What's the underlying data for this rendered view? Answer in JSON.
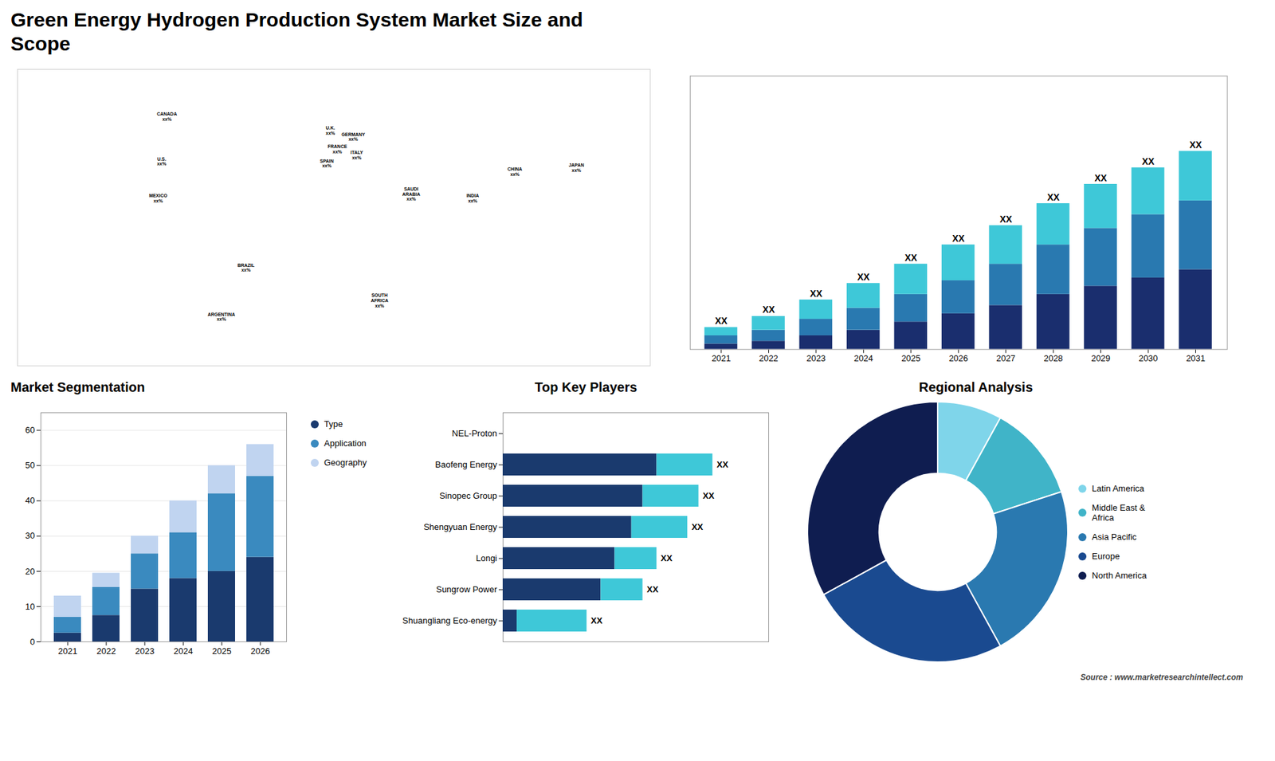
{
  "title": "Green Energy Hydrogen Production System Market Size and\nScope",
  "caption": "Source : www.marketresearchintellect.com",
  "chart_data": [
    {
      "type": "map",
      "xlim": [
        -180,
        180
      ],
      "ylim": [
        -60,
        85
      ],
      "tick_labels": false,
      "points": [
        {
          "name": "CANADA",
          "label": "xx%",
          "x": -95,
          "y": 62
        },
        {
          "name": "U.S.",
          "label": "xx%",
          "x": -98,
          "y": 40
        },
        {
          "name": "MEXICO",
          "label": "xx%",
          "x": -100,
          "y": 22
        },
        {
          "name": "BRAZIL",
          "label": "xx%",
          "x": -50,
          "y": -12
        },
        {
          "name": "ARGENTINA",
          "label": "xx%",
          "x": -64,
          "y": -36
        },
        {
          "name": "U.K.",
          "label": "xx%",
          "x": -2,
          "y": 55
        },
        {
          "name": "FRANCE",
          "label": "xx%",
          "x": 2,
          "y": 46
        },
        {
          "name": "SPAIN",
          "label": "xx%",
          "x": -4,
          "y": 39
        },
        {
          "name": "GERMANY",
          "label": "xx%",
          "x": 11,
          "y": 52
        },
        {
          "name": "ITALY",
          "label": "xx%",
          "x": 13,
          "y": 43
        },
        {
          "name": "SAUDI\nARABIA",
          "label": "xx%",
          "x": 44,
          "y": 24
        },
        {
          "name": "SOUTH\nAFRICA",
          "label": "xx%",
          "x": 26,
          "y": -28
        },
        {
          "name": "CHINA",
          "label": "xx%",
          "x": 103,
          "y": 35
        },
        {
          "name": "INDIA",
          "label": "xx%",
          "x": 79,
          "y": 22
        },
        {
          "name": "JAPAN",
          "label": "xx%",
          "x": 138,
          "y": 37
        }
      ]
    },
    {
      "type": "bar",
      "stacked": true,
      "categories": [
        "2021",
        "2022",
        "2023",
        "2024",
        "2025",
        "2026",
        "2027",
        "2028",
        "2029",
        "2030",
        "2031"
      ],
      "series": [
        {
          "color": "#1a2e6e",
          "values": [
            2,
            3,
            5,
            7,
            10,
            13,
            16,
            20,
            23,
            26,
            29
          ]
        },
        {
          "color": "#2979b0",
          "values": [
            3,
            4,
            6,
            8,
            10,
            12,
            15,
            18,
            21,
            23,
            25
          ]
        },
        {
          "color": "#3ec8d8",
          "values": [
            3,
            5,
            7,
            9,
            11,
            13,
            14,
            15,
            16,
            17,
            18
          ]
        }
      ],
      "ylim": [
        0,
        99.36
      ],
      "tick_labels": "x",
      "bar_labels": [
        "XX",
        "XX",
        "XX",
        "XX",
        "XX",
        "XX",
        "XX",
        "XX",
        "XX",
        "XX",
        "XX"
      ]
    },
    {
      "type": "bar",
      "title": "Market Segmentation",
      "stacked": true,
      "categories": [
        "2021",
        "2022",
        "2023",
        "2024",
        "2025",
        "2026"
      ],
      "series": [
        {
          "name": "Type",
          "color": "#1a3a6e",
          "values": [
            2.5,
            7.5,
            15,
            18,
            20,
            24
          ]
        },
        {
          "name": "Application",
          "color": "#3a8abf",
          "values": [
            4.5,
            8,
            10,
            13,
            22,
            23
          ]
        },
        {
          "name": "Geography",
          "color": "#c0d4f0",
          "values": [
            6,
            4,
            5,
            9,
            8,
            9
          ]
        }
      ],
      "ylim": [
        0,
        65
      ],
      "yticks": [
        0,
        10,
        20,
        30,
        40,
        50,
        60
      ],
      "grid": true,
      "legend": "right"
    },
    {
      "type": "bar",
      "title": "Top Key Players",
      "orientation": "horizontal",
      "stacked": true,
      "categories": [
        "NEL-Proton",
        "Baofeng Energy",
        "Sinopec Group",
        "Shengyuan Energy",
        "Longi",
        "Sungrow Power",
        "Shuangliang Eco-energy"
      ],
      "series": [
        {
          "color": "#1a3a6e",
          "values": [
            0,
            5.5,
            5.0,
            4.6,
            4.0,
            3.5,
            0.5
          ]
        },
        {
          "color": "#3ec8d8",
          "values": [
            0,
            2.0,
            2.0,
            2.0,
            1.5,
            1.5,
            2.5
          ]
        }
      ],
      "xlim": [
        0,
        9.5
      ],
      "tick_labels": "y",
      "bar_labels": [
        null,
        "XX",
        "XX",
        "XX",
        "XX",
        "XX",
        "XX"
      ]
    },
    {
      "type": "pie",
      "title": "Regional Analysis",
      "labels": [
        "Latin America",
        "Middle East &\nAfrica",
        "Asia Pacific",
        "Europe",
        "North America"
      ],
      "values": [
        8,
        12,
        22,
        25,
        33
      ],
      "colors": [
        "#7fd5ea",
        "#40b4c8",
        "#2a79b0",
        "#1a4a90",
        "#0f1d50"
      ],
      "legend": "right"
    }
  ]
}
